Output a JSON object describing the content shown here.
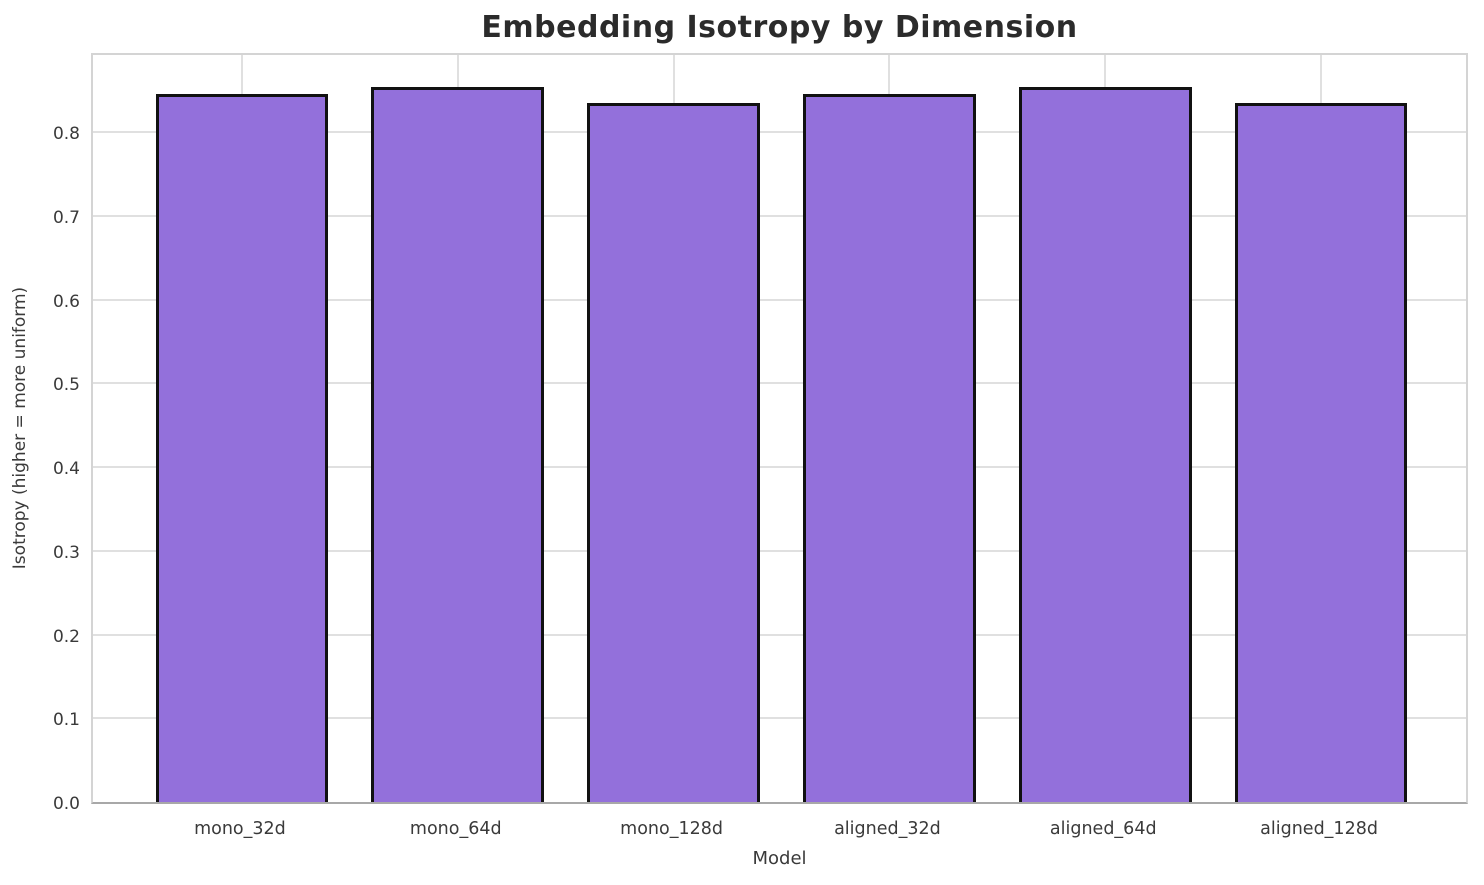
{
  "chart_data": {
    "type": "bar",
    "title": "Embedding Isotropy by Dimension",
    "xlabel": "Model",
    "ylabel": "Isotropy (higher = more uniform)",
    "categories": [
      "mono_32d",
      "mono_64d",
      "mono_128d",
      "aligned_32d",
      "aligned_64d",
      "aligned_128d"
    ],
    "values": [
      0.846,
      0.854,
      0.835,
      0.846,
      0.854,
      0.835
    ],
    "ylim": [
      0,
      0.897
    ],
    "yticks": [
      0.0,
      0.1,
      0.2,
      0.3,
      0.4,
      0.5,
      0.6,
      0.7,
      0.8
    ],
    "ytick_labels": [
      "0.0",
      "0.1",
      "0.2",
      "0.3",
      "0.4",
      "0.5",
      "0.6",
      "0.7",
      "0.8"
    ],
    "grid": "both",
    "legend": "none",
    "bar_width_fraction": 0.8,
    "x_units_span": 6.38,
    "x_left_offset_units": 0.69,
    "colors": {
      "bar_fill": "#9370DB",
      "bar_edge": "#111111",
      "gridline": "#e0e0e0",
      "spine": "#d4d4d4",
      "bottom_spine": "#a8a8a8",
      "title_text": "#2b2b2b",
      "tick_text": "#3a3a3a",
      "background": "#ffffff"
    }
  }
}
